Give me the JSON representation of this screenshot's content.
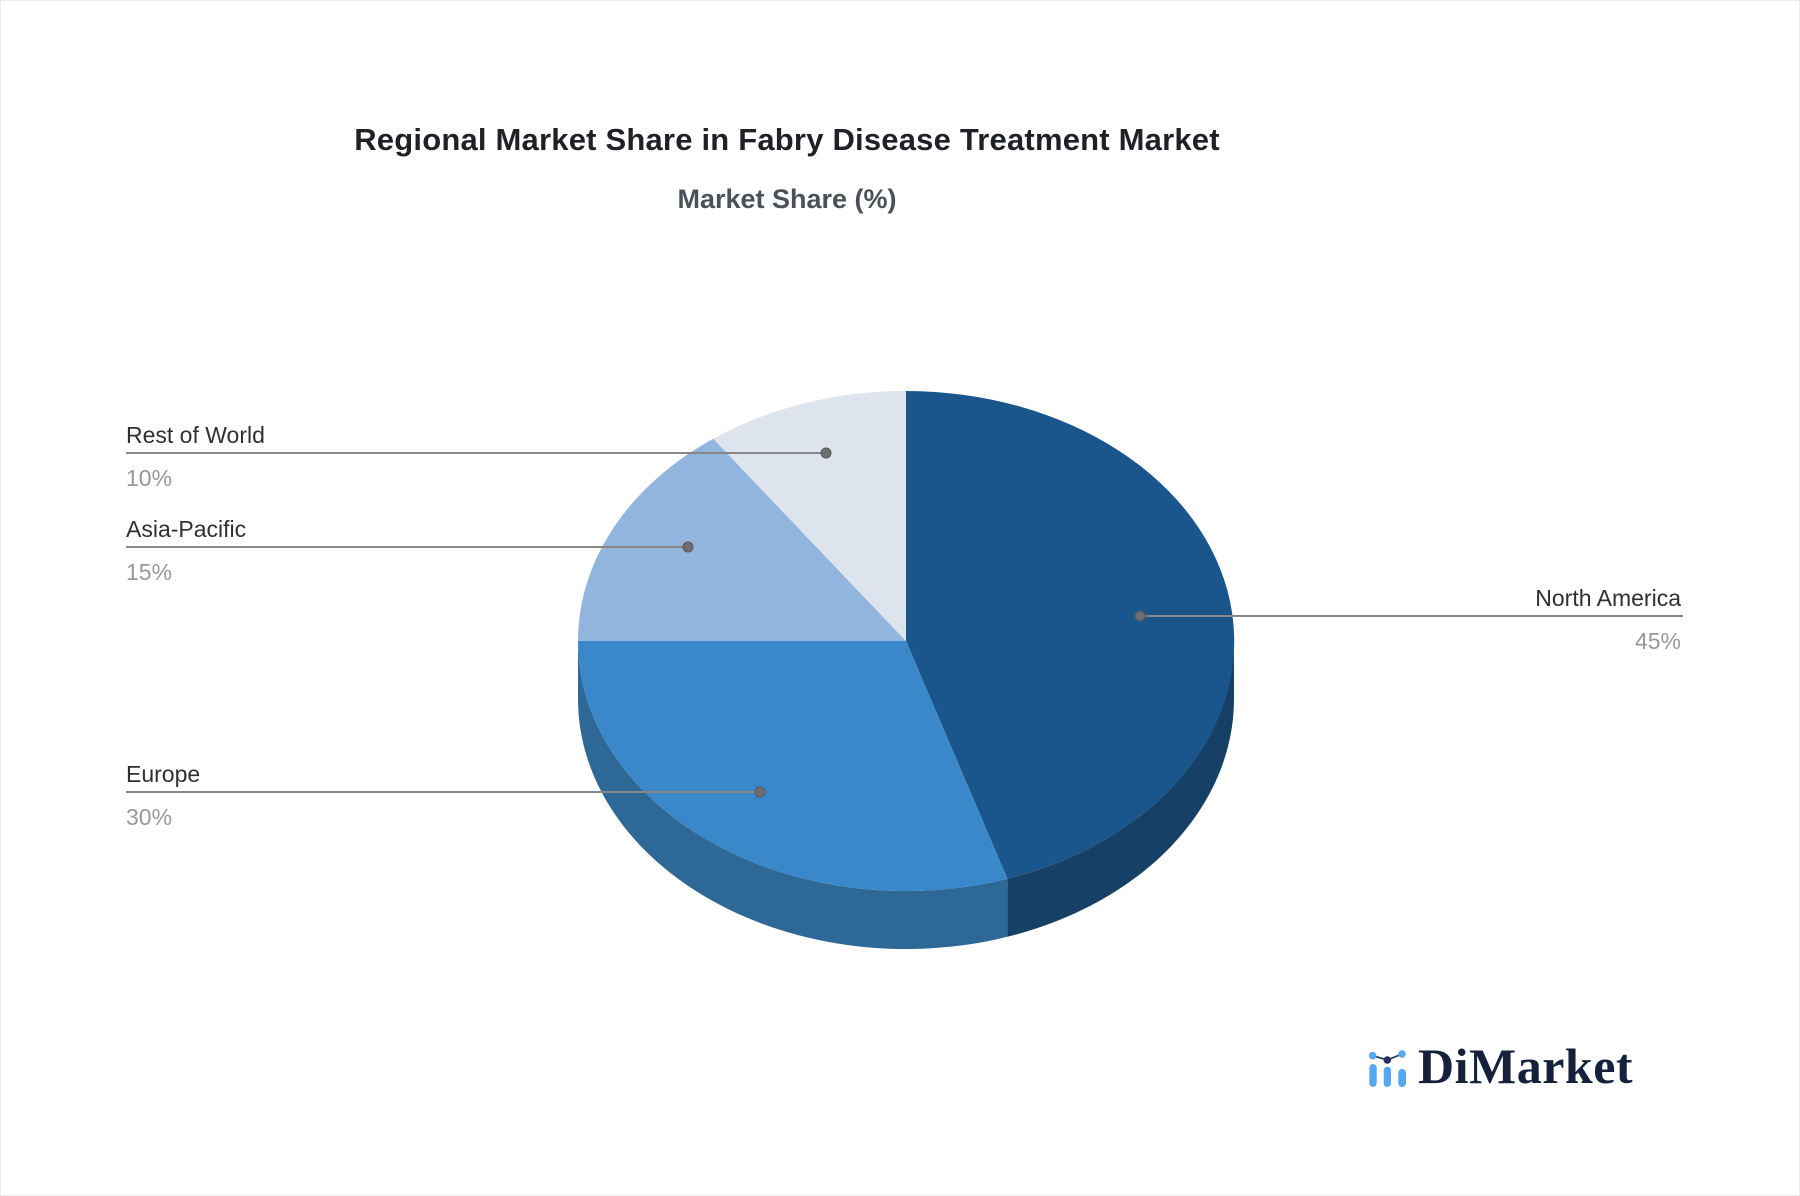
{
  "title": "Regional Market Share in Fabry Disease Treatment Market",
  "subtitle": "Market Share (%)",
  "chart_data": {
    "type": "pie",
    "title": "Regional Market Share in Fabry Disease Treatment Market",
    "subtitle": "Market Share (%)",
    "unit": "percent",
    "style": "3d-pie",
    "start_angle_deg": 0,
    "direction": "clockwise",
    "legend": "none (callout labels with leader lines)",
    "slices": [
      {
        "label": "North America",
        "value": 45,
        "pct_label": "45%",
        "color": "#1a568c",
        "side_color": "#164066"
      },
      {
        "label": "Europe",
        "value": 30,
        "pct_label": "30%",
        "color": "#3a88ca",
        "side_color": "#2d6896"
      },
      {
        "label": "Asia-Pacific",
        "value": 15,
        "pct_label": "15%",
        "color": "#91b5dc",
        "side_color": "#6f91b5"
      },
      {
        "label": "Rest of World",
        "value": 10,
        "pct_label": "10%",
        "color": "#dde4ee",
        "side_color": "#b3bcca"
      }
    ],
    "leader_line_color": "#878787",
    "leader_dot_color": "#6f6f6f",
    "label_color": "#303030",
    "pct_color": "#989898"
  },
  "logo": {
    "brand": "DiMarket",
    "icon": "bar-line-chart-icon",
    "bar_color": "#56a8f1",
    "accent_color": "#22355c",
    "text_color": "#15203a"
  }
}
